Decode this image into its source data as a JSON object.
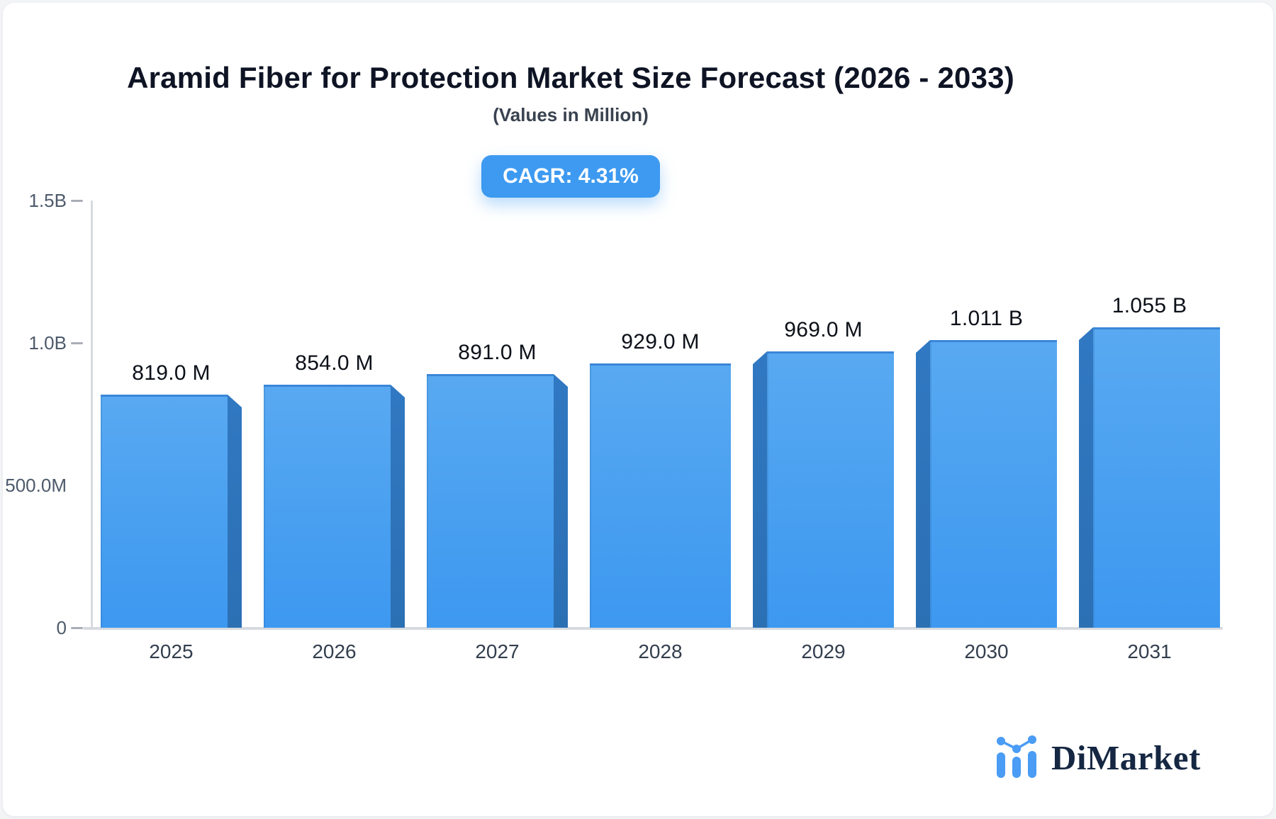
{
  "header": {
    "title": "Aramid Fiber for Protection Market Size Forecast (2026 - 2033)",
    "subtitle": "(Values in Million)",
    "cagr_badge": "CAGR: 4.31%"
  },
  "brand": {
    "name": "DiMarket"
  },
  "colors": {
    "bar_face": "#479ff0",
    "bar_side": "#2e73b8",
    "badge_bg": "#3d9af0",
    "brand_blue": "#4a9cf5",
    "brand_navy": "#152742",
    "axis_gray": "#d6dae0"
  },
  "chart_data": {
    "type": "bar",
    "title": "Aramid Fiber for Protection Market Size Forecast (2026 - 2033)",
    "subtitle": "(Values in Million)",
    "cagr_percent": 4.31,
    "categories": [
      "2025",
      "2026",
      "2027",
      "2028",
      "2029",
      "2030",
      "2031"
    ],
    "values_million": [
      819,
      854,
      891,
      929,
      969,
      1011,
      1055
    ],
    "value_labels": [
      "819.0 M",
      "854.0 M",
      "891.0 M",
      "929.0 M",
      "969.0 M",
      "1.011 B",
      "1.055 B"
    ],
    "y_axis": {
      "ticks": [
        {
          "label": "1.5B",
          "value_million": 1500
        },
        {
          "label": "1.0B",
          "value_million": 1000
        },
        {
          "label": "500.0M",
          "value_million": 500
        },
        {
          "label": "0",
          "value_million": 0
        }
      ],
      "max_million": 1500
    },
    "legend": "none",
    "grid": "off"
  }
}
